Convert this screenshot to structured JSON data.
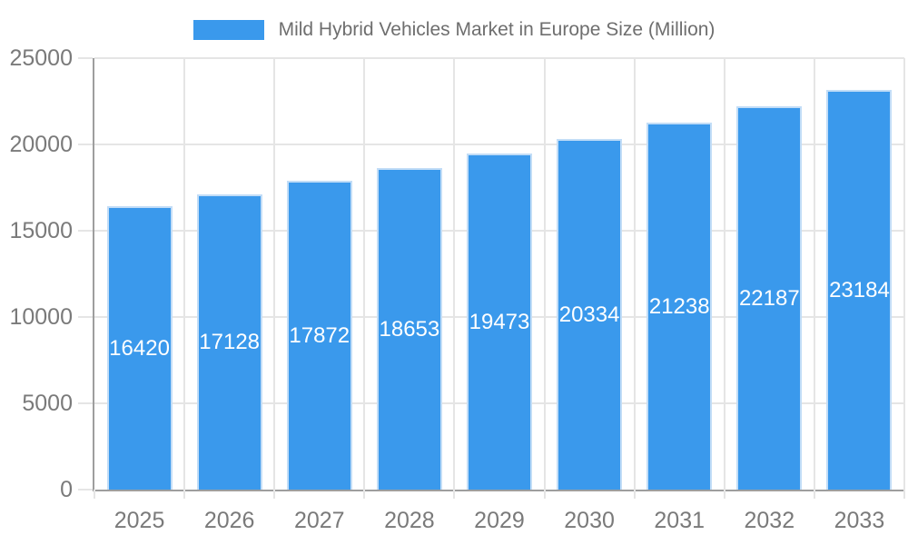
{
  "chart_data": {
    "type": "bar",
    "title": "Mild Hybrid Vehicles Market in Europe Size (Million)",
    "legend_position": "top",
    "categories": [
      "2025",
      "2026",
      "2027",
      "2028",
      "2029",
      "2030",
      "2031",
      "2032",
      "2033"
    ],
    "series": [
      {
        "name": "Mild Hybrid Vehicles Market in Europe Size (Million)",
        "values": [
          16420,
          17128,
          17872,
          18653,
          19473,
          20334,
          21238,
          22187,
          23184
        ]
      }
    ],
    "xlabel": "",
    "ylabel": "",
    "ylim": [
      0,
      25000
    ],
    "yticks": [
      0,
      5000,
      10000,
      15000,
      20000,
      25000
    ],
    "grid": true,
    "data_labels": "inside-center-white",
    "colors": {
      "bar_fill": "#3a99ec",
      "bar_border": "#c2ddf7",
      "gridline": "#e5e5e5",
      "axis_line": "#9e9e9e",
      "axis_text": "#7a7a7a",
      "legend_text": "#6e6e6e",
      "value_text": "#ffffff",
      "background": "#ffffff"
    }
  }
}
